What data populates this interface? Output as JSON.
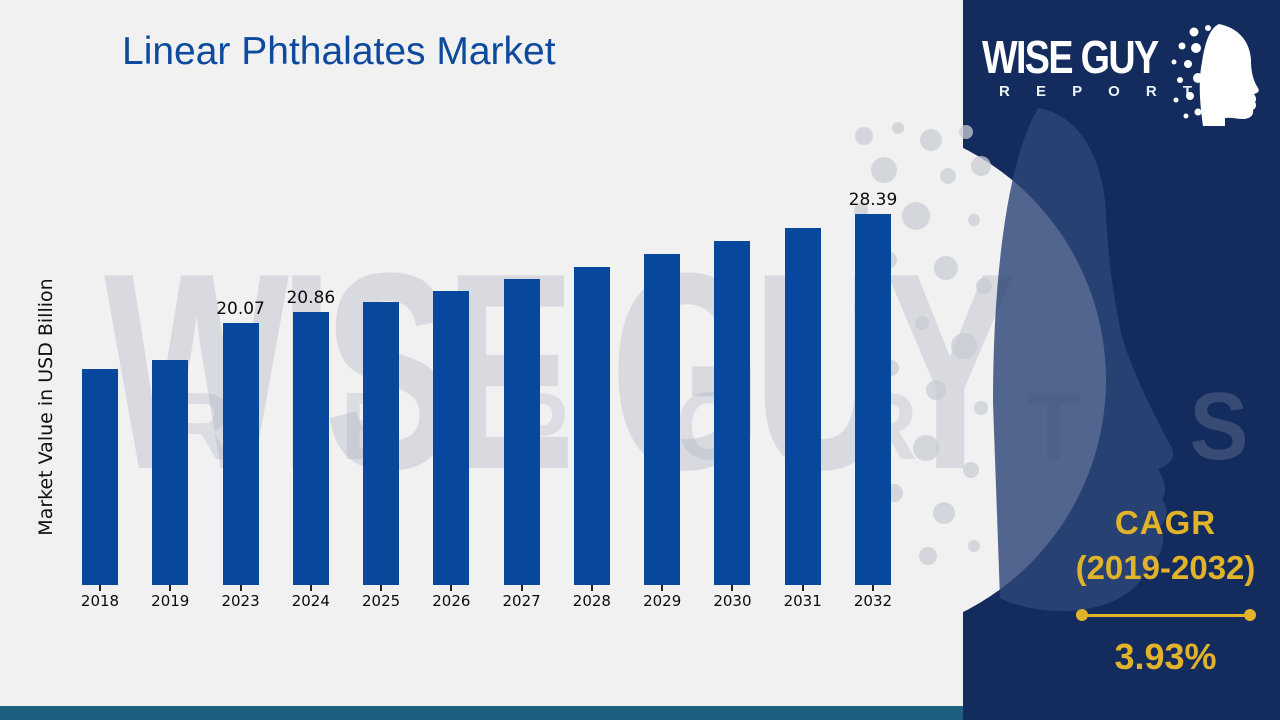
{
  "title": "Linear Phthalates Market",
  "y_axis_label": "Market Value in USD Billion",
  "chart_data": {
    "type": "bar",
    "categories": [
      "2018",
      "2019",
      "2023",
      "2024",
      "2025",
      "2026",
      "2027",
      "2028",
      "2029",
      "2030",
      "2031",
      "2032"
    ],
    "values": [
      16.56,
      17.21,
      20.07,
      20.86,
      21.68,
      22.53,
      23.42,
      24.34,
      25.29,
      26.29,
      27.32,
      28.39
    ],
    "data_labels": [
      "",
      "",
      "20.07",
      "20.86",
      "",
      "",
      "",
      "",
      "",
      "",
      "",
      "28.39"
    ],
    "title": "Linear Phthalates Market",
    "xlabel": "",
    "ylabel": "Market Value in USD Billion",
    "ylim": [
      0,
      30
    ],
    "grid": false,
    "legend": "none",
    "bar_color": "#08489c"
  },
  "branding": {
    "logo_line1": "WISE GUY",
    "logo_line2": "R E P O R T S",
    "watermark_line1": "WISE GUY",
    "watermark_line2": "R E P O R T S"
  },
  "cagr": {
    "label": "CAGR",
    "range": "(2019-2032)",
    "value": "3.93%"
  },
  "colors": {
    "bar_blue": "#08489c",
    "title_blue": "#0d4a9e",
    "panel_navy": "#132c5d",
    "accent_gold": "#e0b32a",
    "footer_teal": "#1d5f7e",
    "background": "#f1f1f2",
    "watermark_gray": "#9ea6b4"
  }
}
